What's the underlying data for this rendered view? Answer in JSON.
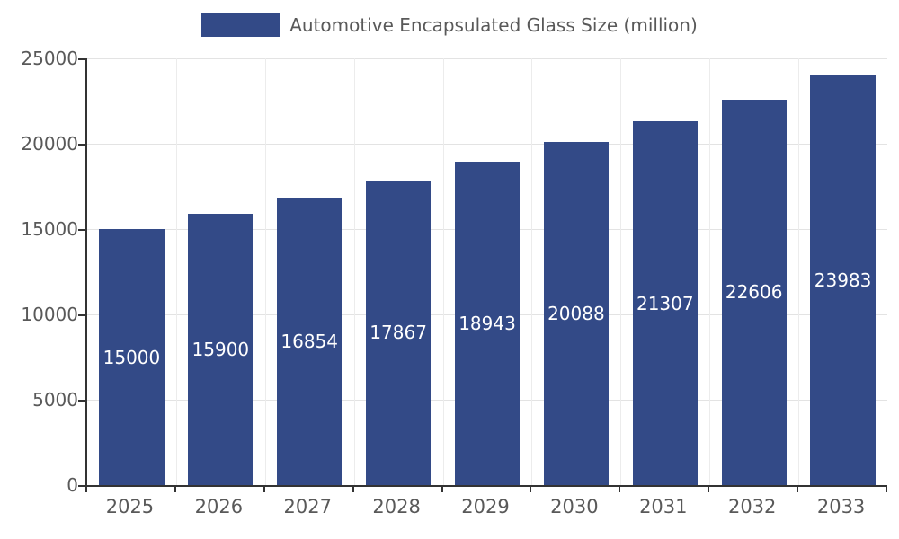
{
  "chart_data": {
    "type": "bar",
    "title": "Automotive Encapsulated Glass Size (million)",
    "categories": [
      "2025",
      "2026",
      "2027",
      "2028",
      "2029",
      "2030",
      "2031",
      "2032",
      "2033"
    ],
    "values": [
      15000,
      15900,
      16854,
      17867,
      18943,
      20088,
      21307,
      22606,
      23983
    ],
    "ylim": [
      0,
      25000
    ],
    "yticks": [
      0,
      5000,
      10000,
      15000,
      20000,
      25000
    ],
    "legend_position": "top",
    "grid": true,
    "colors": {
      "bar": "#334a87",
      "bar_label": "#ffffff",
      "axis_text": "#595959",
      "axis_line": "#333333",
      "gridline": "#e3e3e3"
    }
  }
}
